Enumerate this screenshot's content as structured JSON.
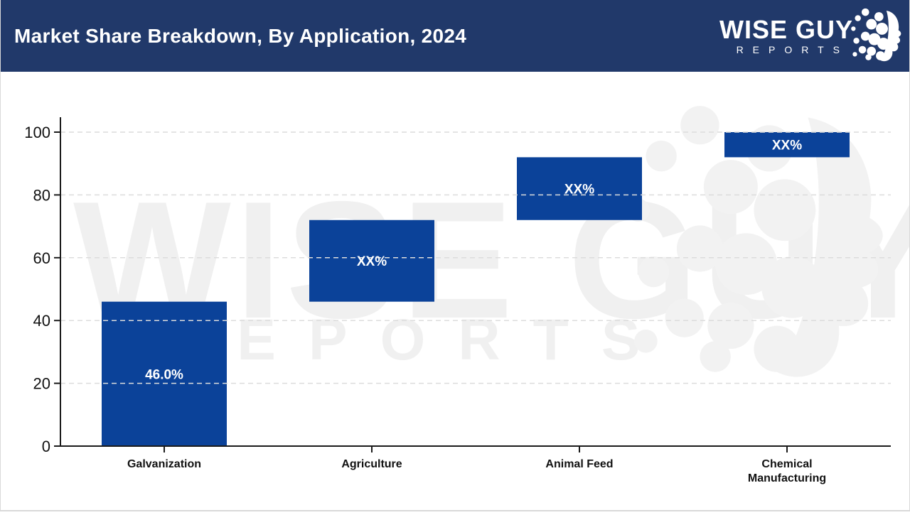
{
  "header": {
    "title": "Market Share Breakdown, By Application, 2024",
    "bg_color": "#21396a",
    "logo": {
      "line1": "WISE GUY",
      "line2": "REPORTS"
    }
  },
  "watermark": {
    "line1": "WISE GUY",
    "line2": "REPORTS"
  },
  "chart_data": {
    "type": "bar",
    "subtype": "waterfall",
    "title": "Market Share Breakdown, By Application, 2024",
    "xlabel": "",
    "ylabel": "",
    "categories": [
      "Galvanization",
      "Agriculture",
      "Animal Feed",
      "Chemical\nManufacturing"
    ],
    "values": [
      46,
      26,
      20,
      8
    ],
    "segments": [
      {
        "category": "Galvanization",
        "start": 0,
        "end": 46,
        "label": "46.0%"
      },
      {
        "category": "Agriculture",
        "start": 46,
        "end": 72,
        "label": "XX%"
      },
      {
        "category": "Animal Feed",
        "start": 72,
        "end": 92,
        "label": "XX%"
      },
      {
        "category": "Chemical Manufacturing",
        "start": 92,
        "end": 100,
        "label": "XX%"
      }
    ],
    "ylim": [
      0,
      100
    ],
    "yticks": [
      0,
      20,
      40,
      60,
      80,
      100
    ],
    "grid": "horizontal-dashed-over-bars",
    "legend": "none",
    "bar_color": "#0b4299",
    "bar_label_color": "#ffffff",
    "grid_color": "#dcdcdc",
    "axis_color": "#1a1a1a",
    "tick_label_color": "#111111"
  }
}
